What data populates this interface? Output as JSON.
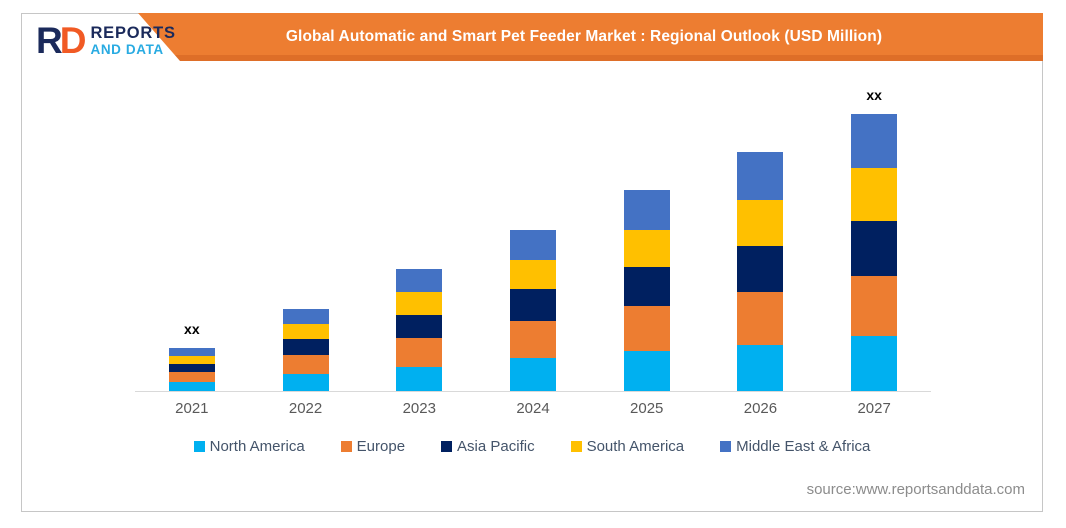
{
  "logo": {
    "mark_r": "R",
    "mark_d": "D",
    "line1": "REPORTS",
    "line2": "AND DATA",
    "colors": {
      "mark_r": "#1B2A5B",
      "mark_d": "#F15A24",
      "line1": "#1B2A5B",
      "line2": "#29ABE2"
    }
  },
  "banner": {
    "title": "Global Automatic and Smart Pet Feeder Market : Regional Outlook (USD Million)",
    "bg": "#ED7D31",
    "bg_bottom_strip": "#DE6E28"
  },
  "chart_data": {
    "type": "bar",
    "stacked": true,
    "title": "Global Automatic and Smart Pet Feeder Market : Regional Outlook (USD Million)",
    "xlabel": "",
    "ylabel": "",
    "value_unit": "USD Million (numeric values masked as 'xx' in source image; series values below are relative heights in px)",
    "grid": false,
    "legend_position": "bottom",
    "axis_line_color": "#d9d9d9",
    "category_label_color": "#595959",
    "legend_text_color": "#44546A",
    "categories": [
      "2021",
      "2022",
      "2023",
      "2024",
      "2025",
      "2026",
      "2027"
    ],
    "series": [
      {
        "name": "North America",
        "color": "#00B0F0",
        "values": [
          9,
          17,
          24,
          33,
          40,
          46,
          55
        ]
      },
      {
        "name": "Europe",
        "color": "#ED7D31",
        "values": [
          10,
          19,
          29,
          37,
          45,
          53,
          60
        ]
      },
      {
        "name": "Asia Pacific",
        "color": "#002060",
        "values": [
          8,
          16,
          23,
          32,
          39,
          46,
          55
        ]
      },
      {
        "name": "South America",
        "color": "#FFC000",
        "values": [
          8,
          15,
          23,
          29,
          37,
          46,
          53
        ]
      },
      {
        "name": "Middle East & Africa",
        "color": "#4472C4",
        "values": [
          8,
          15,
          23,
          30,
          40,
          48,
          54
        ]
      }
    ],
    "bar_labels": [
      {
        "category": "2021",
        "text": "xx"
      },
      {
        "category": "2027",
        "text": "xx"
      }
    ]
  },
  "source": {
    "label": "source:www.reportsanddata.com"
  }
}
